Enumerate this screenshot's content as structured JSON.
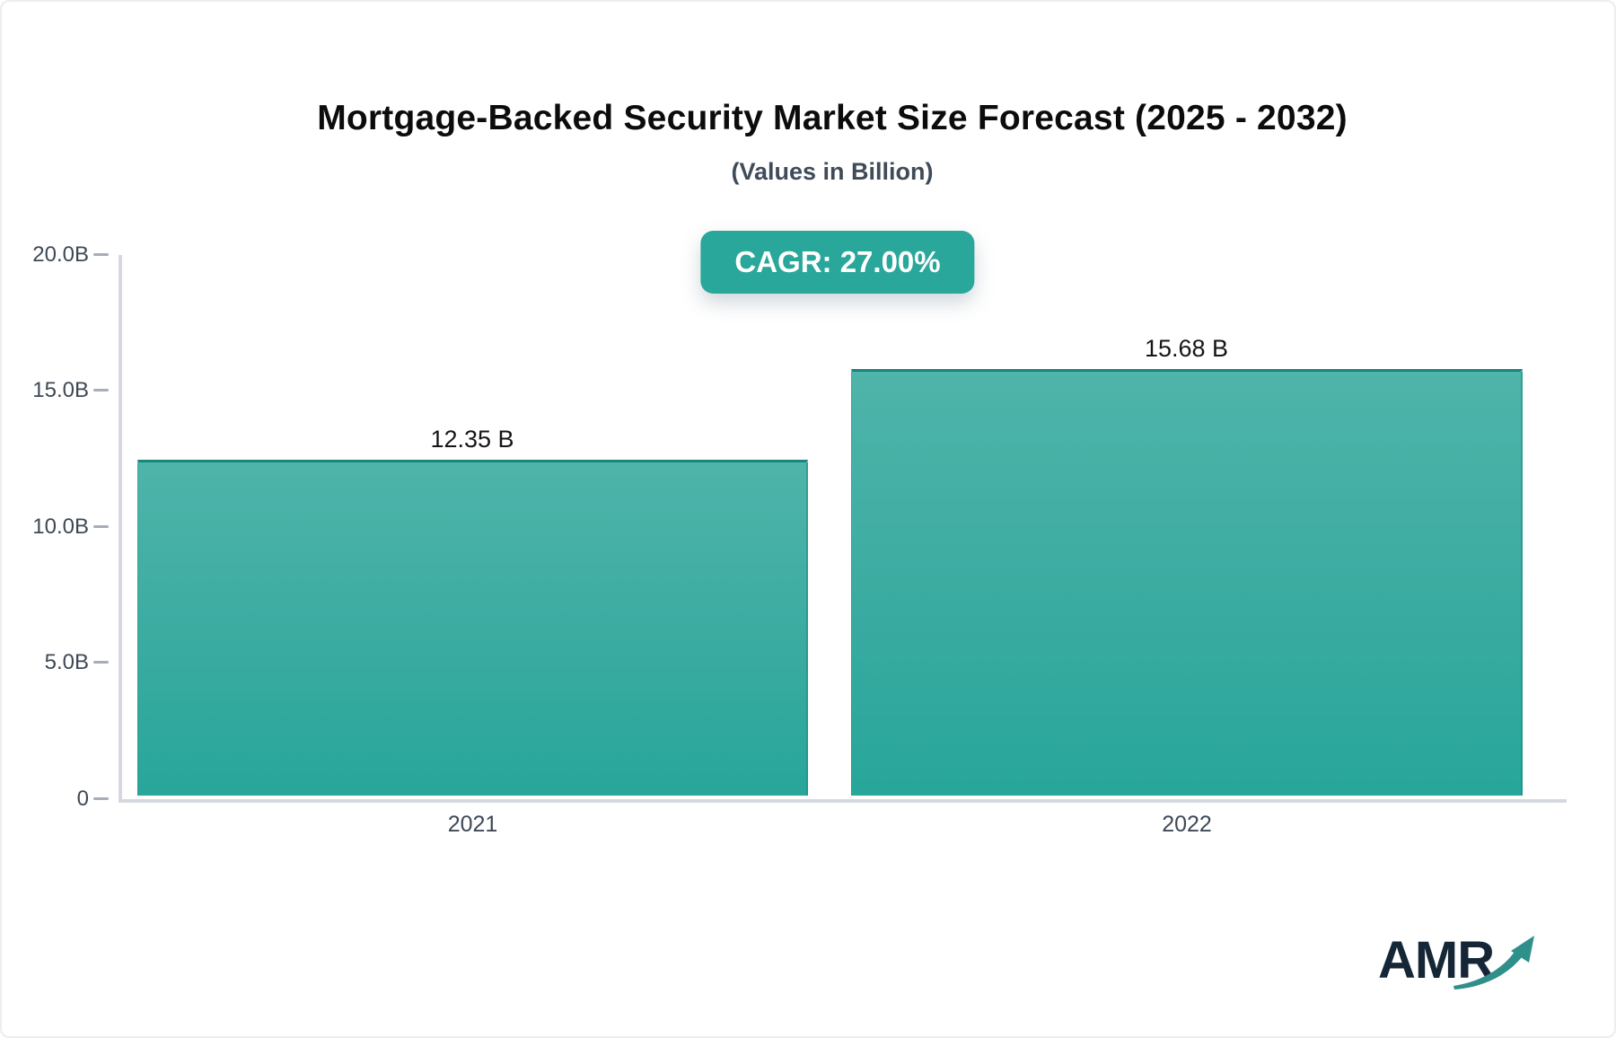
{
  "header": {
    "title": "Mortgage-Backed Security Market Size Forecast (2025 - 2032)",
    "subtitle": "(Values in Billion)"
  },
  "badge": {
    "label": "CAGR: 27.00%"
  },
  "chart_data": {
    "type": "bar",
    "title": "Mortgage-Backed Security Market Size Forecast (2025 - 2032)",
    "subtitle": "(Values in Billion)",
    "unit": "Billion",
    "cagr_label": "CAGR: 27.00%",
    "categories": [
      "2021",
      "2022"
    ],
    "values": [
      12.35,
      15.68
    ],
    "value_labels": [
      "12.35 B",
      "15.68 B"
    ],
    "ylim": [
      0,
      20
    ],
    "yticks": [
      {
        "value": 20,
        "label": "20.0B"
      },
      {
        "value": 15,
        "label": "15.0B"
      },
      {
        "value": 10,
        "label": "10.0B"
      },
      {
        "value": 5,
        "label": "5.0B"
      },
      {
        "value": 0,
        "label": "0"
      }
    ],
    "grid": false,
    "legend": false,
    "bar_colors": {
      "top": "#4FB4AA",
      "bottom": "#28A69A",
      "top_border": "#19857C"
    }
  },
  "colors": {
    "badge_bg": "#2AA79B",
    "badge_text": "#FFFFFF",
    "axis_line": "#D5D9DF",
    "tick_dash": "#A6ADB7",
    "axis_label_text": "#3D4956",
    "value_label_text": "#161616",
    "title_text": "#0C0C0D",
    "subtitle_text": "#3F4B59",
    "logo_text": "#152736",
    "logo_arrow": "#2E8F8B"
  },
  "logo": {
    "text": "AMR"
  }
}
